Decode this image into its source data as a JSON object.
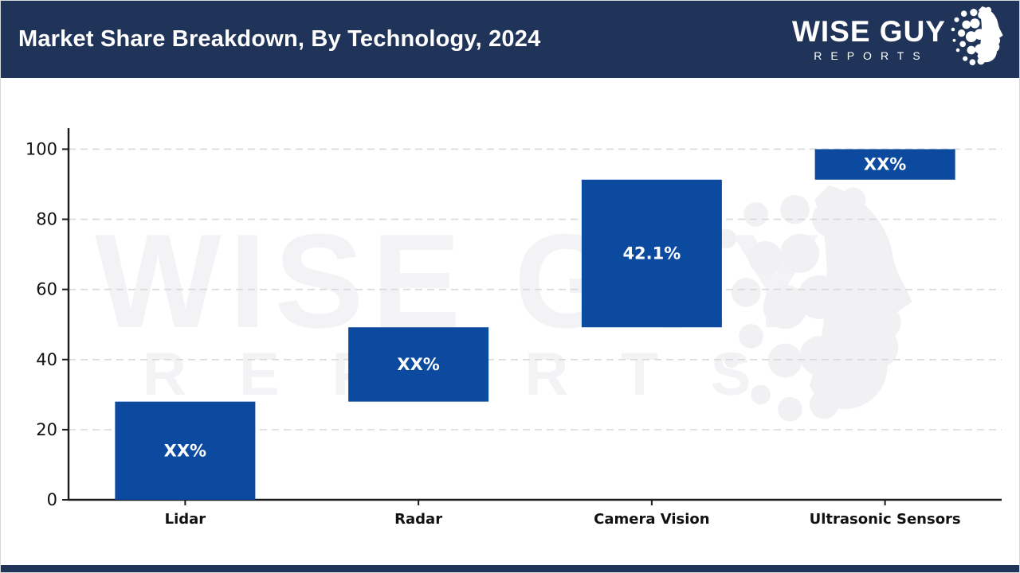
{
  "header": {
    "title": "Market Share Breakdown, By Technology, 2024",
    "background": "#20345A",
    "logo": {
      "line1": "WISE GUY",
      "line2": "REPORTS"
    }
  },
  "watermark": {
    "line1": "WISE GUY",
    "line2": "REPORTS"
  },
  "footer": {
    "background": "#20345A"
  },
  "chart_data": {
    "type": "bar",
    "subtype": "floating-waterfall",
    "title": "Market Share Breakdown, By Technology, 2024",
    "categories": [
      "Lidar",
      "Radar",
      "Camera Vision",
      "Ultrasonic Sensors"
    ],
    "segments": [
      {
        "category": "Lidar",
        "from": 0,
        "to": 28,
        "label": "XX%"
      },
      {
        "category": "Radar",
        "from": 28,
        "to": 49.2,
        "label": "XX%"
      },
      {
        "category": "Camera Vision",
        "from": 49.2,
        "to": 91.3,
        "label": "42.1%"
      },
      {
        "category": "Ultrasonic Sensors",
        "from": 91.3,
        "to": 100,
        "label": "XX%"
      }
    ],
    "yticks": [
      0,
      20,
      40,
      60,
      80,
      100
    ],
    "ylim": [
      0,
      106
    ],
    "xlabel": "",
    "ylabel": "",
    "grid": "horizontal-dashed",
    "legend": "none",
    "bar_color": "#0B4A9E",
    "bar_label_color": "#ffffff",
    "axis_color": "#1a1a1a",
    "grid_color": "#d9d9d9",
    "tick_label_color": "#111111"
  }
}
